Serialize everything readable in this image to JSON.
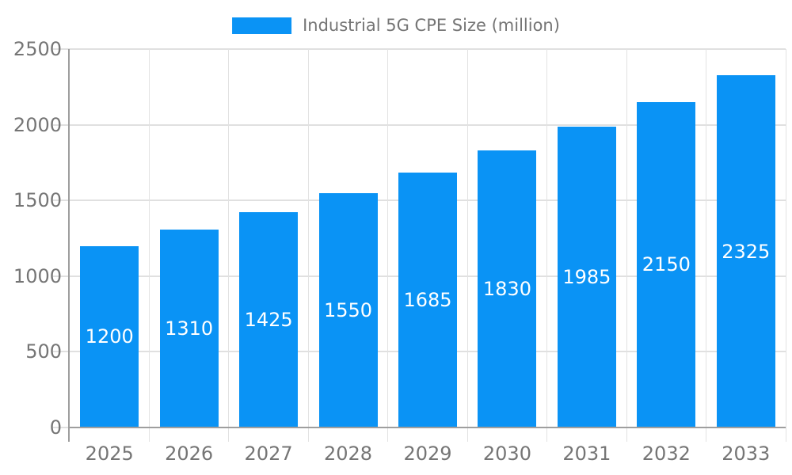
{
  "legend": {
    "label": "Industrial 5G CPE Size (million)"
  },
  "chart_data": {
    "type": "bar",
    "title": "Industrial 5G CPE Size (million)",
    "categories": [
      "2025",
      "2026",
      "2027",
      "2028",
      "2029",
      "2030",
      "2031",
      "2032",
      "2033"
    ],
    "series": [
      {
        "name": "Industrial 5G CPE Size (million)",
        "values": [
          1200,
          1310,
          1425,
          1550,
          1685,
          1830,
          1985,
          2150,
          2325
        ]
      }
    ],
    "xlabel": "",
    "ylabel": "",
    "ylim": [
      0,
      2500
    ],
    "yticks": [
      0,
      500,
      1000,
      1500,
      2000,
      2500
    ],
    "grid": true,
    "legend_position": "top-center",
    "value_label_position": "inside-center",
    "value_label_color": "#ffffff"
  },
  "colors": {
    "bar": "#0a93f5",
    "axis_line": "#9e9e9e",
    "grid_line": "#e0e0e0",
    "tick_text": "#757575",
    "legend_text": "#757575",
    "background": "#ffffff"
  }
}
